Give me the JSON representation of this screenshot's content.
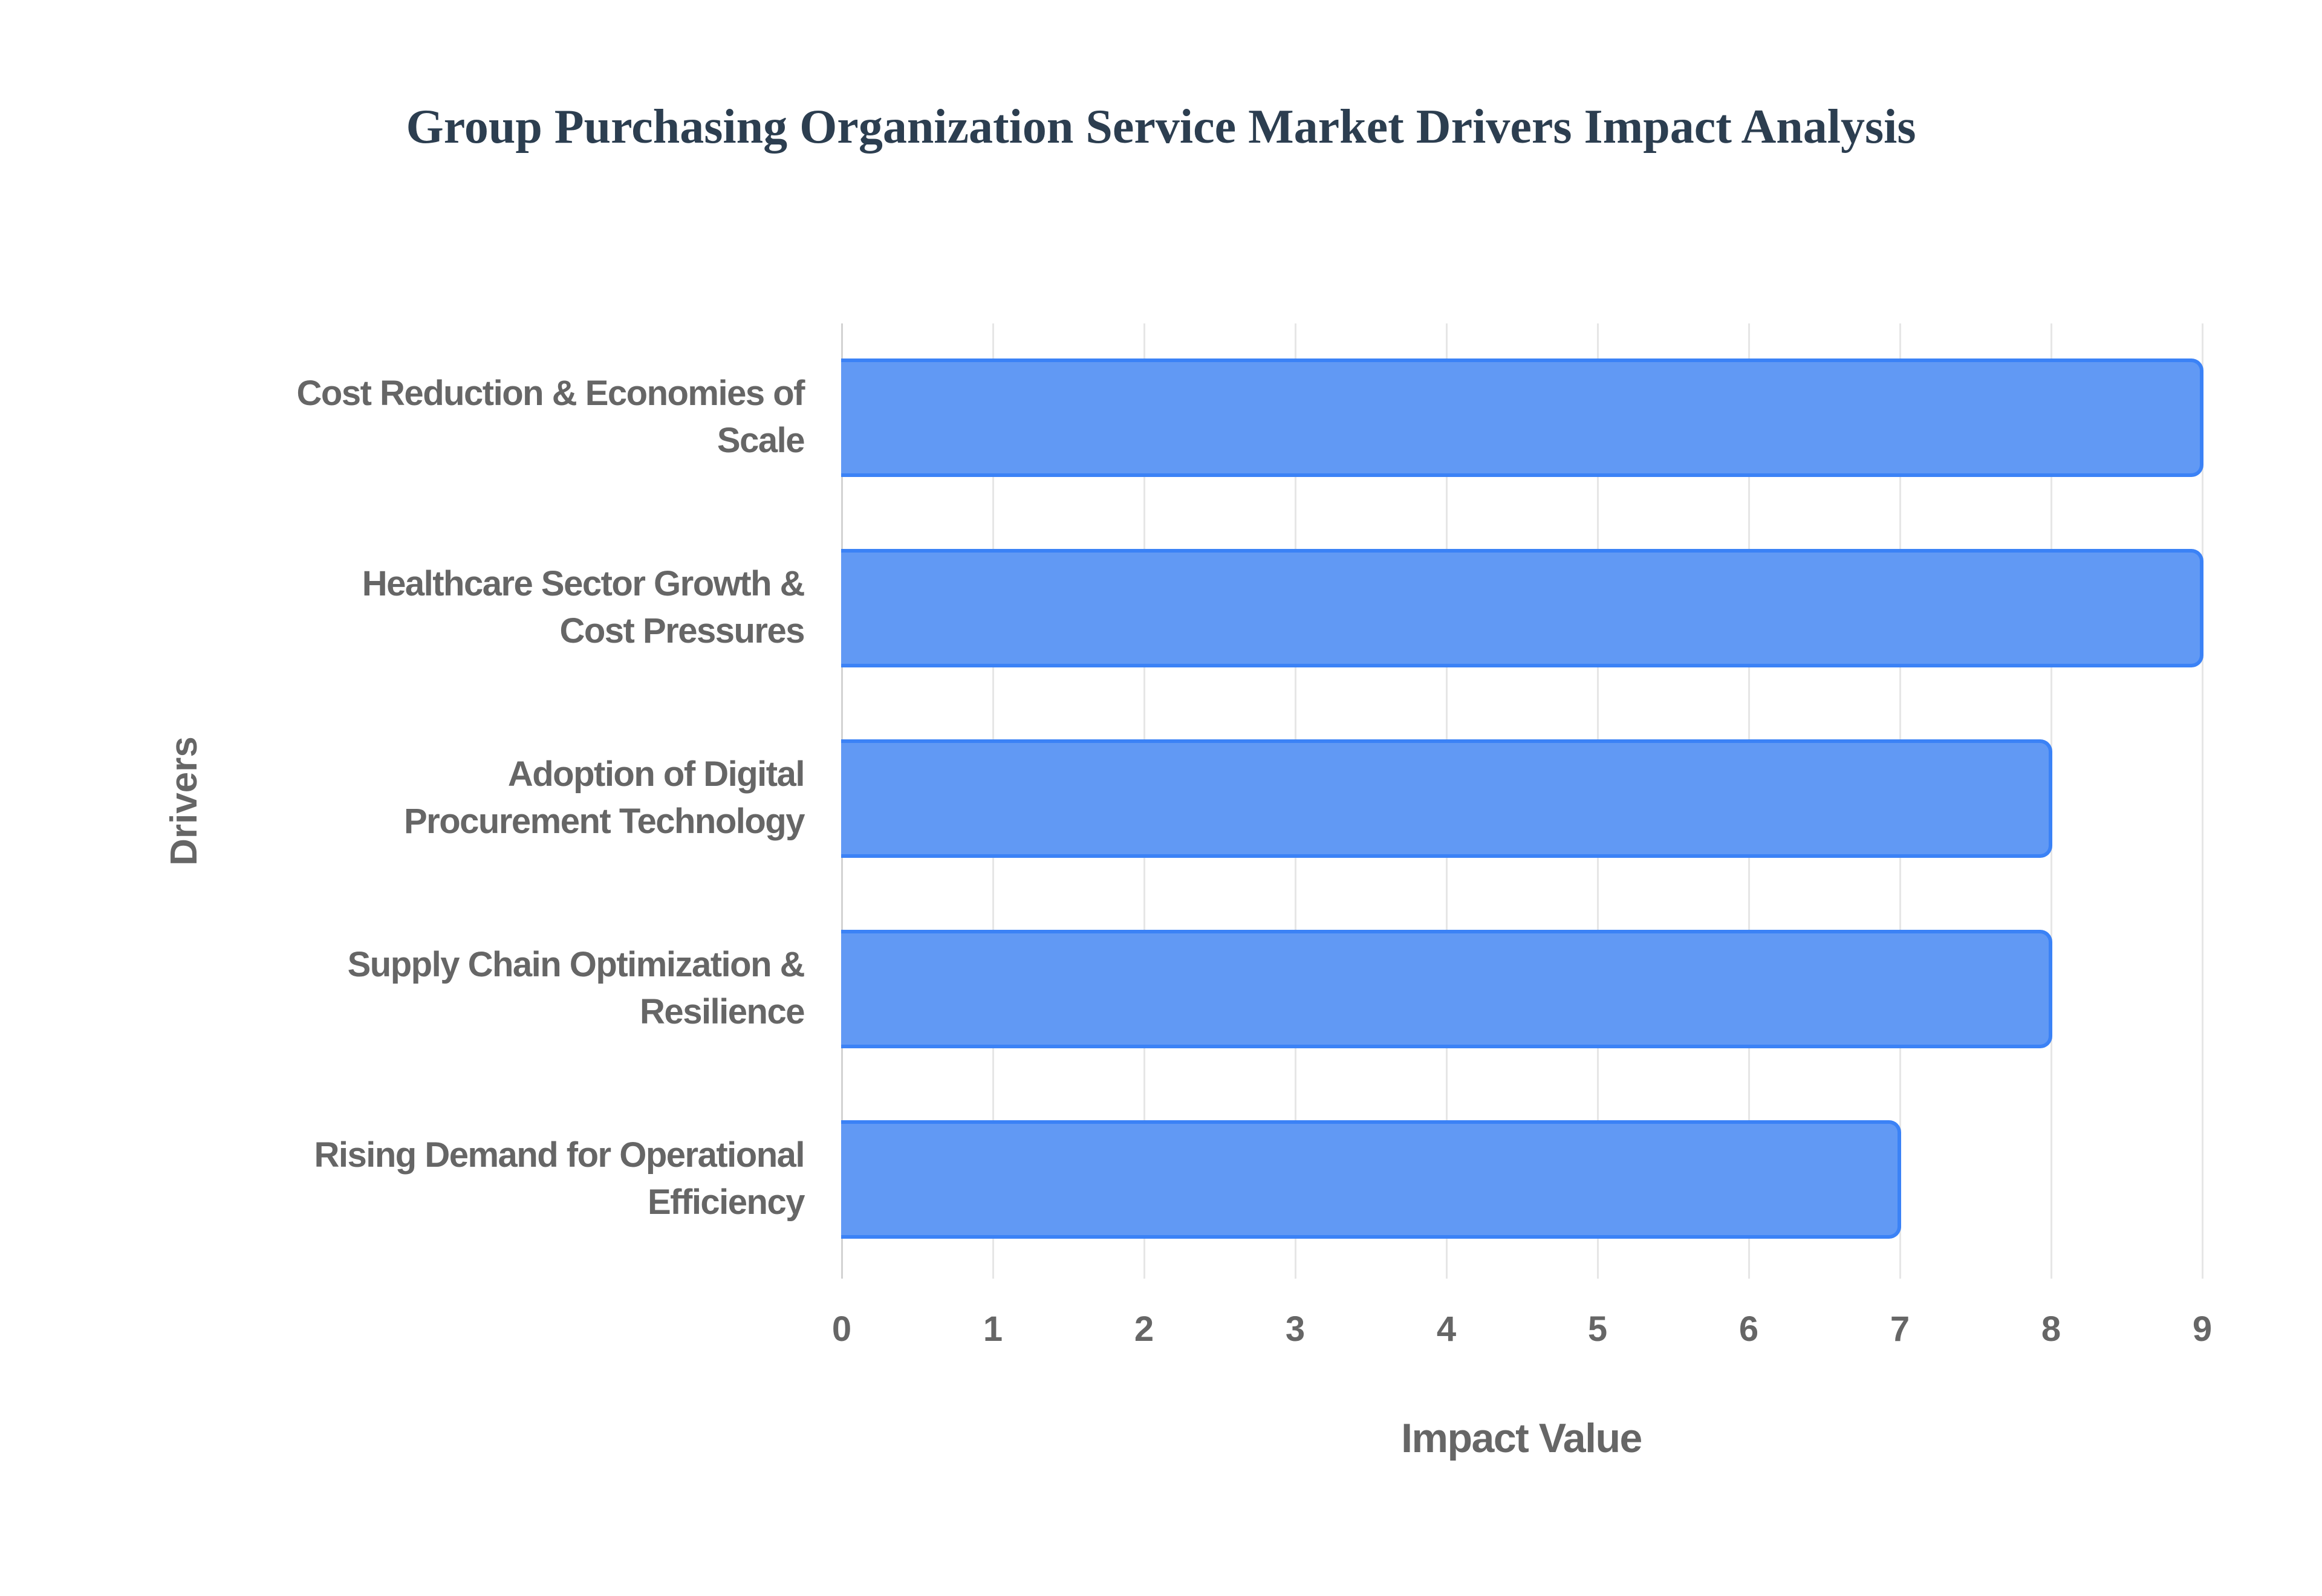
{
  "chart": {
    "title": "Group Purchasing Organization Service Market Drivers Impact Analysis",
    "x_axis_title": "Impact Value",
    "y_axis_title": "Drivers",
    "x_ticks": [
      "0",
      "1",
      "2",
      "3",
      "4",
      "5",
      "6",
      "7",
      "8",
      "9"
    ],
    "bars": [
      {
        "label": "Cost Reduction & Economies of Scale",
        "line1": "Cost Reduction & Economies of",
        "line2": "Scale",
        "value": 9
      },
      {
        "label": "Healthcare Sector Growth & Cost Pressures",
        "line1": "Healthcare Sector Growth &",
        "line2": "Cost Pressures",
        "value": 9
      },
      {
        "label": "Adoption of Digital Procurement Technology",
        "line1": "Adoption of Digital",
        "line2": "Procurement Technology",
        "value": 8
      },
      {
        "label": "Supply Chain Optimization & Resilience",
        "line1": "Supply Chain Optimization &",
        "line2": "Resilience",
        "value": 8
      },
      {
        "label": "Rising Demand for Operational Efficiency",
        "line1": "Rising Demand for Operational",
        "line2": "Efficiency",
        "value": 7
      }
    ],
    "colors": {
      "bar_fill": "#6199f4",
      "bar_border": "#3b82f6",
      "title": "#2c3e50",
      "axis_text": "#666666",
      "grid": "#e6e6e6"
    }
  },
  "chart_data": {
    "type": "bar",
    "orientation": "horizontal",
    "title": "Group Purchasing Organization Service Market Drivers Impact Analysis",
    "xlabel": "Impact Value",
    "ylabel": "Drivers",
    "categories": [
      "Cost Reduction & Economies of Scale",
      "Healthcare Sector Growth & Cost Pressures",
      "Adoption of Digital Procurement Technology",
      "Supply Chain Optimization & Resilience",
      "Rising Demand for Operational Efficiency"
    ],
    "values": [
      9,
      9,
      8,
      8,
      7
    ],
    "xlim": [
      0,
      9
    ],
    "x_ticks": [
      0,
      1,
      2,
      3,
      4,
      5,
      6,
      7,
      8,
      9
    ],
    "grid": true,
    "legend": null
  }
}
